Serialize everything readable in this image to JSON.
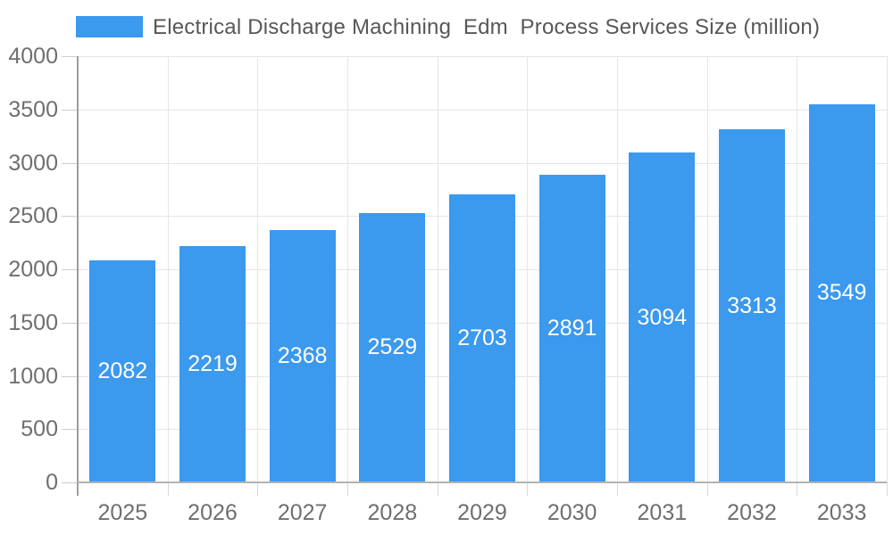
{
  "legend": {
    "label": "Electrical Discharge Machining  Edm  Process Services Size (million)"
  },
  "colors": {
    "bar": "#3B99EE",
    "bar_label": "#ffffff",
    "grid": "#e6e6e6",
    "axis_line": "#a6a6a6",
    "tick": "#cccccc",
    "axis_text": "#6f6f6f",
    "legend_text": "#575757",
    "background": "#ffffff"
  },
  "chart_data": {
    "type": "bar",
    "title": "Electrical Discharge Machining  Edm  Process Services Size (million)",
    "categories": [
      "2025",
      "2026",
      "2027",
      "2028",
      "2029",
      "2030",
      "2031",
      "2032",
      "2033"
    ],
    "series": [
      {
        "name": "Electrical Discharge Machining  Edm  Process Services Size (million)",
        "values": [
          2082,
          2219,
          2368,
          2529,
          2703,
          2891,
          3094,
          3313,
          3549
        ]
      }
    ],
    "xlabel": "",
    "ylabel": "",
    "ylim": [
      0,
      4000
    ],
    "ytick_step": 500,
    "yticks": [
      0,
      500,
      1000,
      1500,
      2000,
      2500,
      3000,
      3500,
      4000
    ],
    "grid": true,
    "bar_value_labels": true,
    "legend_position": "top-left"
  }
}
